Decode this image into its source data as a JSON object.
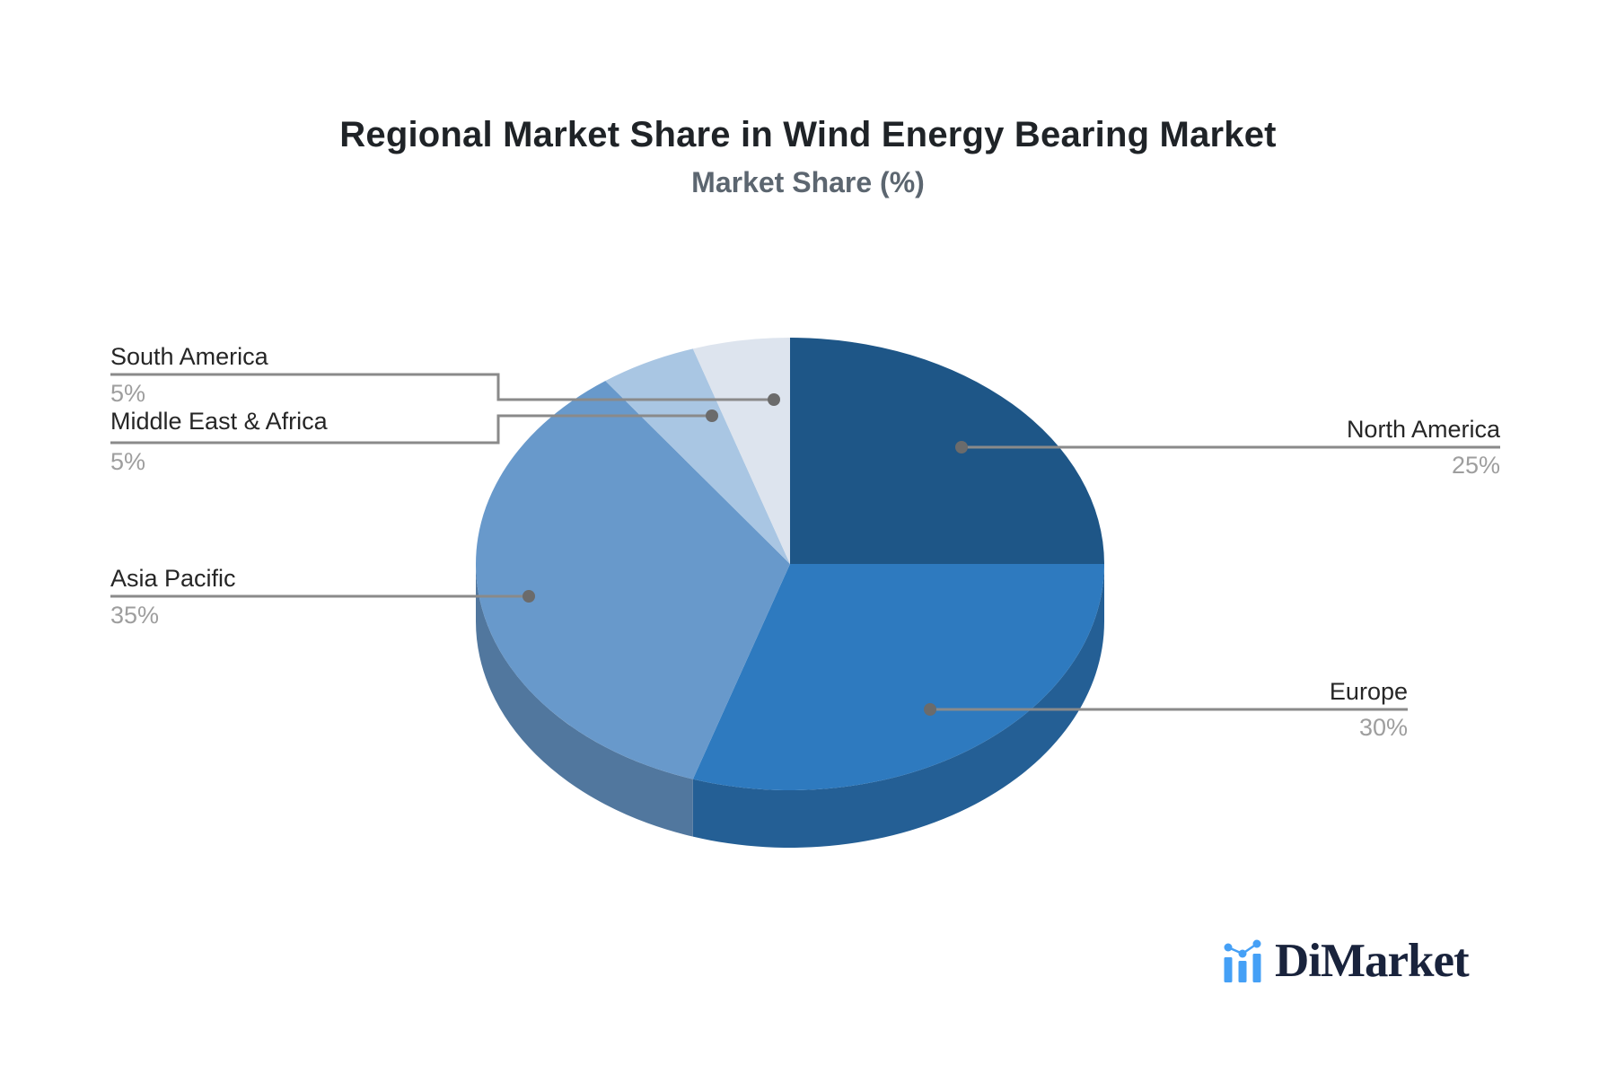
{
  "header": {
    "title": "Regional Market Share in Wind Energy Bearing Market",
    "subtitle": "Market Share (%)"
  },
  "chart_data": {
    "type": "pie",
    "title": "Regional Market Share in Wind Energy Bearing Market",
    "subtitle": "Market Share (%)",
    "unit": "%",
    "effect": "3d",
    "start_angle_deg": 0,
    "direction": "clockwise",
    "legend_position": "none",
    "slices": [
      {
        "label": "North America",
        "value": 25,
        "pct": "25%",
        "color": "#1e5687"
      },
      {
        "label": "Europe",
        "value": 30,
        "pct": "30%",
        "color": "#2e7abf"
      },
      {
        "label": "Asia Pacific",
        "value": 35,
        "pct": "35%",
        "color": "#6899cb"
      },
      {
        "label": "Middle East & Africa",
        "value": 5,
        "pct": "5%",
        "color": "#a9c6e3"
      },
      {
        "label": "South America",
        "value": 5,
        "pct": "5%",
        "color": "#dde4ee"
      }
    ]
  },
  "colors": {
    "background": "#ffffff",
    "leader_line": "#8a8a8a",
    "leader_dot": "#6b6b6b",
    "title_text": "#1f2327",
    "subtitle_text": "#5c6670",
    "label_name_text": "#262626",
    "label_pct_text": "#9e9e9e",
    "logo_blue": "#45a0f6",
    "logo_text_color": "#19233c"
  },
  "branding": {
    "logo_text": "DiMarket",
    "logo_icon": "bar-line-chart-icon"
  }
}
